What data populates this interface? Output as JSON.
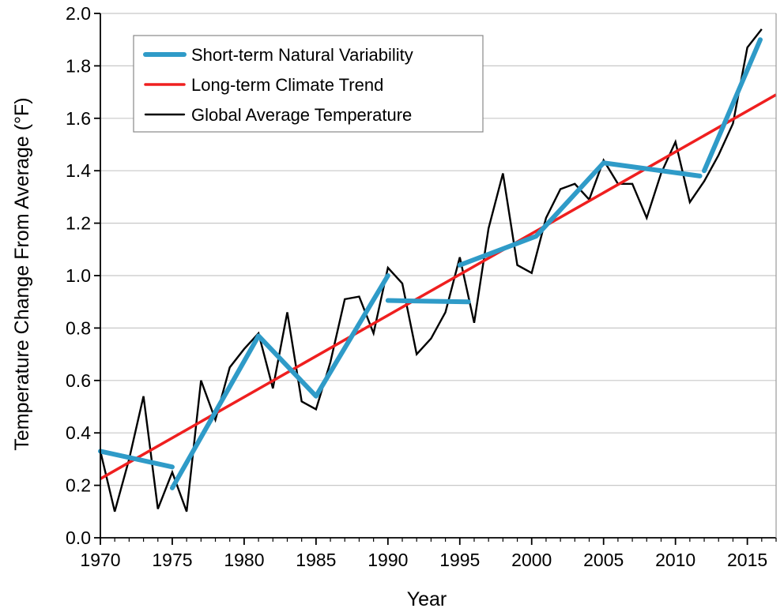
{
  "chart_data": {
    "type": "line",
    "title": "",
    "xlabel": "Year",
    "ylabel": "Temperature Change From Average (°F)",
    "xlim": [
      1970,
      2017
    ],
    "ylim": [
      0.0,
      2.0
    ],
    "x_ticks": [
      1970,
      1975,
      1980,
      1985,
      1990,
      1995,
      2000,
      2005,
      2010,
      2015
    ],
    "x_tick_labels": [
      "1970",
      "1975",
      "1980",
      "1985",
      "1990",
      "1995",
      "2000",
      "2005",
      "2010",
      "2015"
    ],
    "y_ticks": [
      0.0,
      0.2,
      0.4,
      0.6,
      0.8,
      1.0,
      1.2,
      1.4,
      1.6,
      1.8,
      2.0
    ],
    "y_tick_labels": [
      "0.0",
      "0.2",
      "0.4",
      "0.6",
      "0.8",
      "1.0",
      "1.2",
      "1.4",
      "1.6",
      "1.8",
      "2.0"
    ],
    "grid": "horizontal",
    "legend_position": "top-left",
    "series": [
      {
        "name": "Short-term Natural Variability",
        "color": "#2f9bc8",
        "segments": [
          [
            [
              1970,
              0.33
            ],
            [
              1975,
              0.27
            ]
          ],
          [
            [
              1975,
              0.19
            ],
            [
              1981,
              0.77
            ],
            [
              1985,
              0.54
            ],
            [
              1990,
              1.0
            ]
          ],
          [
            [
              1990,
              0.905
            ],
            [
              1995.6,
              0.9
            ]
          ],
          [
            [
              1995,
              1.04
            ],
            [
              2000.3,
              1.15
            ],
            [
              2005,
              1.43
            ],
            [
              2011.7,
              1.38
            ]
          ],
          [
            [
              2012,
              1.4
            ],
            [
              2015.9,
              1.9
            ]
          ]
        ]
      },
      {
        "name": "Long-term Climate Trend",
        "color": "#ef1f1f",
        "points": [
          [
            1970,
            0.225
          ],
          [
            2017,
            1.69
          ]
        ]
      },
      {
        "name": "Global Average Temperature",
        "color": "#000000",
        "points": [
          [
            1970,
            0.33
          ],
          [
            1971,
            0.1
          ],
          [
            1972,
            0.3
          ],
          [
            1973,
            0.54
          ],
          [
            1974,
            0.11
          ],
          [
            1975,
            0.25
          ],
          [
            1976,
            0.1
          ],
          [
            1977,
            0.6
          ],
          [
            1978,
            0.45
          ],
          [
            1979,
            0.65
          ],
          [
            1980,
            0.72
          ],
          [
            1981,
            0.78
          ],
          [
            1982,
            0.57
          ],
          [
            1983,
            0.86
          ],
          [
            1984,
            0.52
          ],
          [
            1985,
            0.49
          ],
          [
            1986,
            0.67
          ],
          [
            1987,
            0.91
          ],
          [
            1988,
            0.92
          ],
          [
            1989,
            0.78
          ],
          [
            1990,
            1.03
          ],
          [
            1991,
            0.97
          ],
          [
            1992,
            0.7
          ],
          [
            1993,
            0.76
          ],
          [
            1994,
            0.86
          ],
          [
            1995,
            1.07
          ],
          [
            1996,
            0.82
          ],
          [
            1997,
            1.18
          ],
          [
            1998,
            1.39
          ],
          [
            1999,
            1.04
          ],
          [
            2000,
            1.01
          ],
          [
            2001,
            1.22
          ],
          [
            2002,
            1.33
          ],
          [
            2003,
            1.35
          ],
          [
            2004,
            1.29
          ],
          [
            2005,
            1.44
          ],
          [
            2006,
            1.35
          ],
          [
            2007,
            1.35
          ],
          [
            2008,
            1.22
          ],
          [
            2009,
            1.39
          ],
          [
            2010,
            1.51
          ],
          [
            2011,
            1.28
          ],
          [
            2012,
            1.36
          ],
          [
            2013,
            1.46
          ],
          [
            2014,
            1.58
          ],
          [
            2015,
            1.87
          ],
          [
            2016,
            1.94
          ]
        ]
      }
    ]
  }
}
